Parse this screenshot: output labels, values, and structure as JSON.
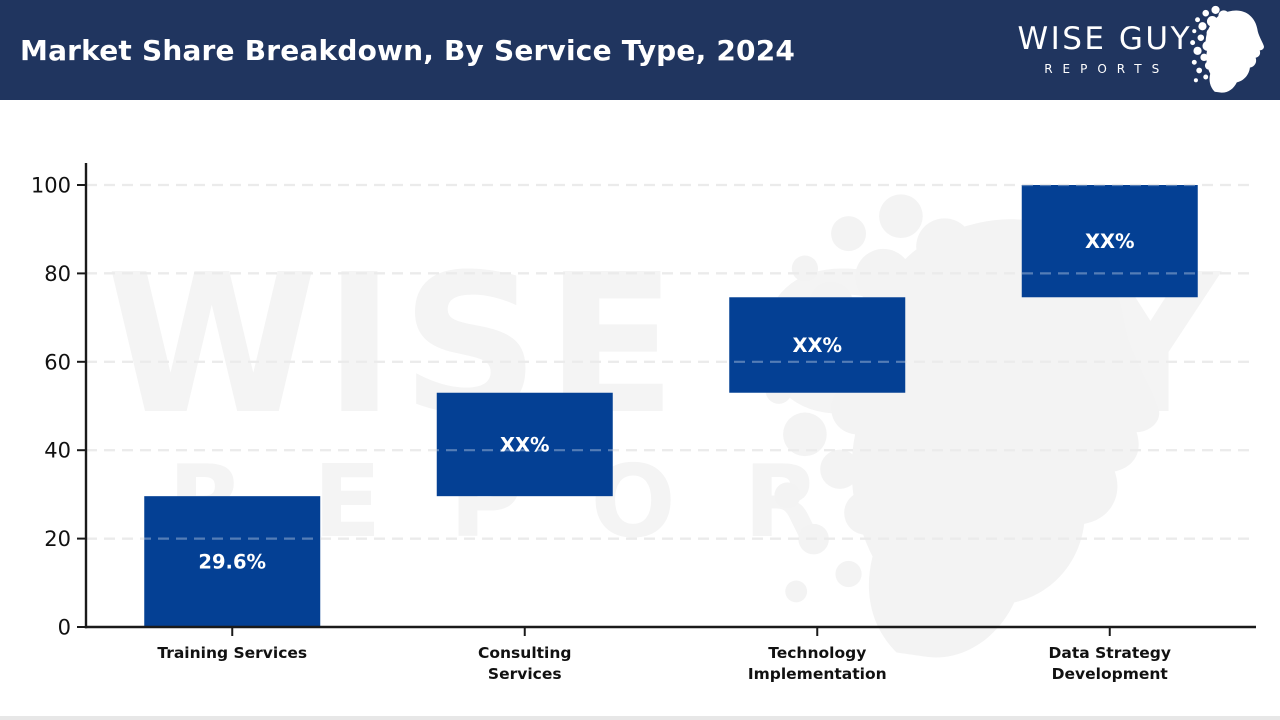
{
  "header": {
    "title": "Market Share Breakdown, By Service Type, 2024",
    "logo": {
      "line1": "WISE GUY",
      "line2": "REPORTS"
    }
  },
  "watermark": {
    "line1": "WISE GUY",
    "line2": "REPORTS"
  },
  "icons": {
    "logo_head": "head-profile-with-dots"
  },
  "colors": {
    "header_bg": "#20355f",
    "bar": "#044094",
    "bar_label": "#ffffff",
    "grid": "#e2e2e2",
    "axis": "#1a1a1a",
    "tick_text": "#111111",
    "watermark": "#f4f4f4",
    "footer": "#e7e7e7"
  },
  "chart_data": {
    "type": "bar",
    "subtype": "waterfall",
    "title": "Market Share Breakdown, By Service Type, 2024",
    "value_unit": "%",
    "categories": [
      "Training Services",
      "Consulting Services",
      "Technology Implementation",
      "Data Strategy Development"
    ],
    "categories_lines": [
      [
        "Training Services"
      ],
      [
        "Consulting",
        "Services"
      ],
      [
        "Technology",
        "Implementation"
      ],
      [
        "Data Strategy",
        "Development"
      ]
    ],
    "segments": [
      {
        "start": 0,
        "end": 29.6,
        "label": "29.6%"
      },
      {
        "start": 29.6,
        "end": 53.0,
        "label": "XX%"
      },
      {
        "start": 53.0,
        "end": 74.6,
        "label": "XX%"
      },
      {
        "start": 74.6,
        "end": 100.0,
        "label": "XX%"
      }
    ],
    "yticks": [
      0,
      20,
      40,
      60,
      80,
      100
    ],
    "ylim": [
      0,
      104.8
    ],
    "grid": "dashed-horizontal",
    "legend": "none"
  }
}
